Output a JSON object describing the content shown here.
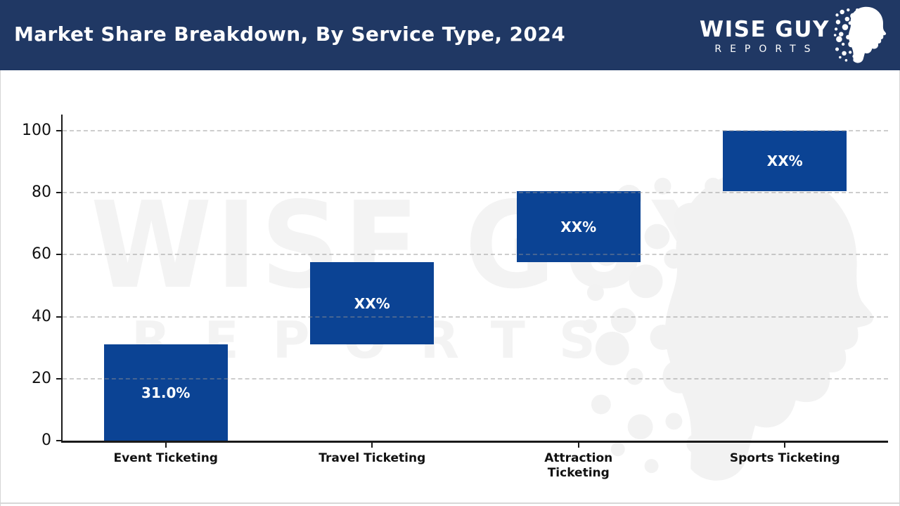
{
  "header": {
    "title": "Market Share Breakdown, By Service Type, 2024",
    "logo": {
      "name": "WISE GUY",
      "sub": "REPORTS"
    }
  },
  "watermark": {
    "name": "WISE GUY",
    "sub": "REPORTS"
  },
  "colors": {
    "header_bg": "#203864",
    "bar": "#0b4394",
    "bar_label_text": "#ffffff",
    "axis": "#1a1a1a",
    "gridline": "#d2d2d2",
    "watermark": "#f3f3f3"
  },
  "chart_data": {
    "type": "bar",
    "subtype": "waterfall",
    "title": "Market Share Breakdown, By Service Type, 2024",
    "categories": [
      "Event Ticketing",
      "Travel Ticketing",
      "Attraction Ticketing",
      "Sports Ticketing"
    ],
    "segments": [
      {
        "category": "Event Ticketing",
        "start": 0,
        "end": 31.0,
        "label": "31.0%"
      },
      {
        "category": "Travel Ticketing",
        "start": 31.0,
        "end": 57.6,
        "label": "XX%"
      },
      {
        "category": "Attraction Ticketing",
        "start": 57.6,
        "end": 80.4,
        "label": "XX%"
      },
      {
        "category": "Sports Ticketing",
        "start": 80.4,
        "end": 100.0,
        "label": "XX%"
      }
    ],
    "xlabel": "",
    "ylabel": "",
    "ylim": [
      0,
      100
    ],
    "yticks": [
      0,
      20,
      40,
      60,
      80,
      100
    ],
    "grid": "horizontal-dashed",
    "legend": "none"
  }
}
